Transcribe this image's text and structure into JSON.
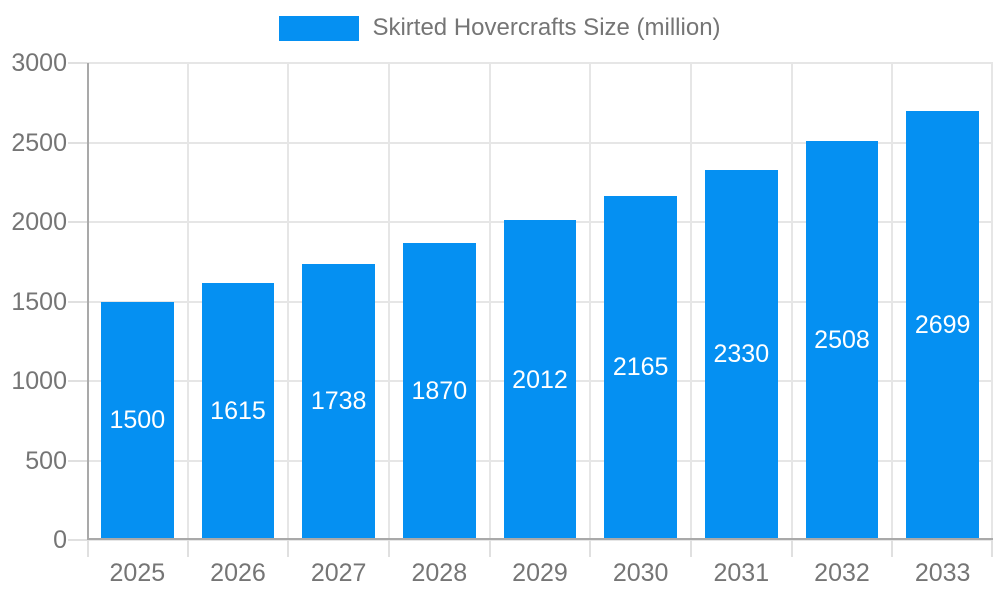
{
  "legend": {
    "series_label": "Skirted Hovercrafts Size (million)"
  },
  "colors": {
    "bar": "#0590F2",
    "gridline": "#E6E6E6",
    "tick": "#E0E0E0",
    "axis": "#A9A9A9",
    "axis_label": "#757575",
    "value_label": "#FFFFFF",
    "background": "#FFFFFF"
  },
  "chart_data": {
    "type": "bar",
    "title": "Skirted Hovercrafts Size (million)",
    "categories": [
      "2025",
      "2026",
      "2027",
      "2028",
      "2029",
      "2030",
      "2031",
      "2032",
      "2033"
    ],
    "values": [
      1500,
      1615,
      1738,
      1870,
      2012,
      2165,
      2330,
      2508,
      2699
    ],
    "series": [
      {
        "name": "Skirted Hovercrafts Size (million)",
        "values": [
          1500,
          1615,
          1738,
          1870,
          2012,
          2165,
          2330,
          2508,
          2699
        ]
      }
    ],
    "xlabel": "",
    "ylabel": "",
    "ylim": [
      0,
      3000
    ],
    "yticks": [
      0,
      500,
      1000,
      1500,
      2000,
      2500,
      3000
    ],
    "grid": true,
    "legend_position": "top",
    "value_labels": "inside-center",
    "bar_width_ratio": 0.72
  }
}
